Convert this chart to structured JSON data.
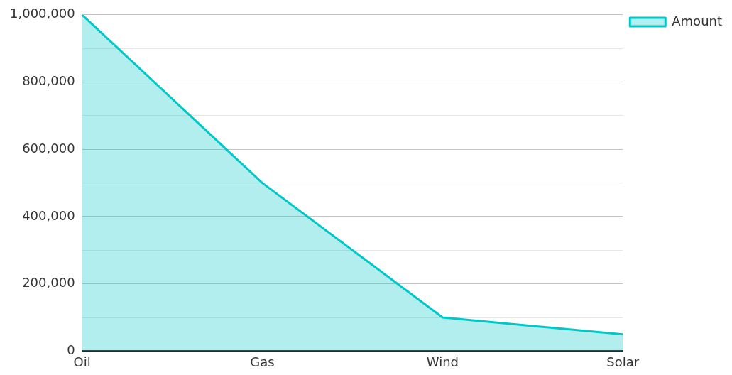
{
  "chart_data": {
    "type": "area",
    "categories": [
      "Oil",
      "Gas",
      "Wind",
      "Solar"
    ],
    "series": [
      {
        "name": "Amount",
        "color": "#00c8c8",
        "values": [
          1000000,
          500000,
          100000,
          50000
        ]
      }
    ],
    "ylim": [
      0,
      1000000
    ],
    "yticks": [
      0,
      {
        "value": 100000,
        "label": null
      },
      {
        "value": 200000,
        "label": "200,000"
      },
      {
        "value": 300000,
        "label": null
      },
      {
        "value": 400000,
        "label": "400,000"
      },
      {
        "value": 500000,
        "label": null
      },
      {
        "value": 600000,
        "label": "600,000"
      },
      {
        "value": 700000,
        "label": null
      },
      {
        "value": 800000,
        "label": "800,000"
      },
      {
        "value": 900000,
        "label": null
      },
      {
        "value": 1000000,
        "label": "1,000,000"
      }
    ],
    "grid": "y",
    "legend": "top right",
    "marker": "none",
    "line_style": "solid"
  }
}
